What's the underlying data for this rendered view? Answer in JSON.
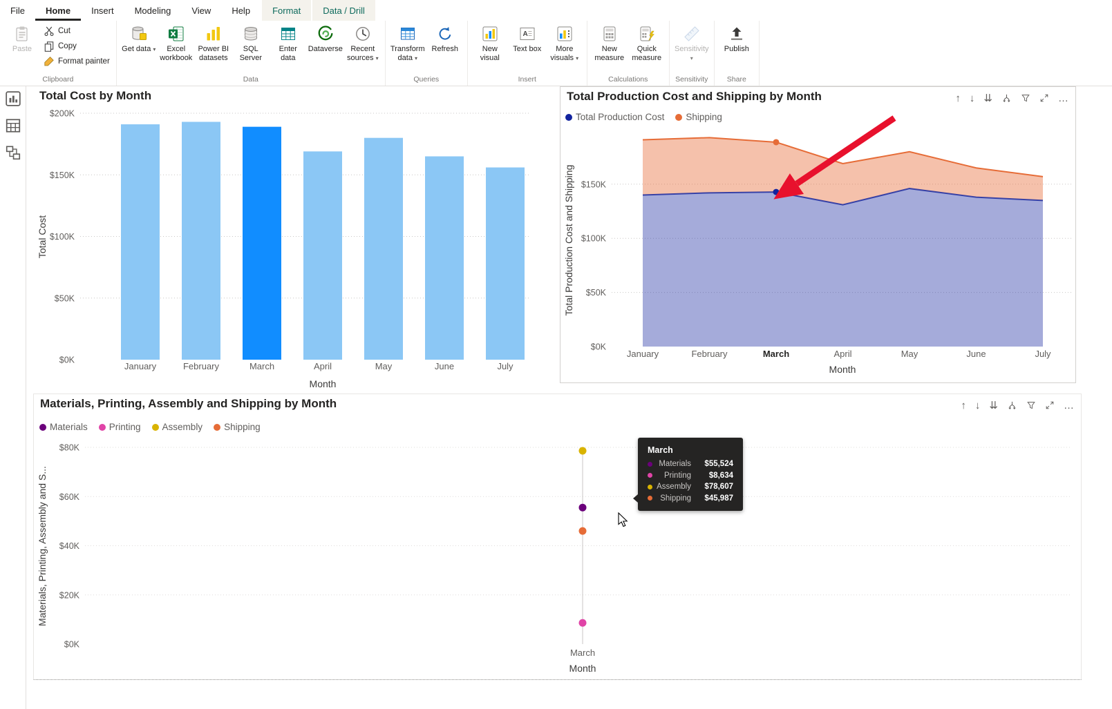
{
  "menu": {
    "tabs": [
      {
        "label": "File",
        "active": false
      },
      {
        "label": "Home",
        "active": true
      },
      {
        "label": "Insert",
        "active": false
      },
      {
        "label": "Modeling",
        "active": false
      },
      {
        "label": "View",
        "active": false
      },
      {
        "label": "Help",
        "active": false
      }
    ],
    "contextual_tabs": [
      {
        "label": "Format"
      },
      {
        "label": "Data / Drill"
      }
    ]
  },
  "ribbon": {
    "groups": [
      {
        "label": "Clipboard",
        "items": [
          {
            "label": "Paste",
            "icon": "paste-icon",
            "disabled": true
          },
          {
            "label": "Cut",
            "icon": "cut-icon"
          },
          {
            "label": "Copy",
            "icon": "copy-icon"
          },
          {
            "label": "Format painter",
            "icon": "format-painter-icon"
          }
        ]
      },
      {
        "label": "Data",
        "items": [
          {
            "label": "Get data",
            "icon": "get-data-icon",
            "dropdown": true
          },
          {
            "label": "Excel workbook",
            "icon": "excel-workbook-icon"
          },
          {
            "label": "Power BI datasets",
            "icon": "power-bi-datasets-icon"
          },
          {
            "label": "SQL Server",
            "icon": "sql-server-icon"
          },
          {
            "label": "Enter data",
            "icon": "enter-data-icon"
          },
          {
            "label": "Dataverse",
            "icon": "dataverse-icon"
          },
          {
            "label": "Recent sources",
            "icon": "recent-sources-icon",
            "dropdown": true
          }
        ]
      },
      {
        "label": "Queries",
        "items": [
          {
            "label": "Transform data",
            "icon": "transform-data-icon",
            "dropdown": true
          },
          {
            "label": "Refresh",
            "icon": "refresh-icon"
          }
        ]
      },
      {
        "label": "Insert",
        "items": [
          {
            "label": "New visual",
            "icon": "new-visual-icon"
          },
          {
            "label": "Text box",
            "icon": "text-box-icon"
          },
          {
            "label": "More visuals",
            "icon": "more-visuals-icon",
            "dropdown": true
          }
        ]
      },
      {
        "label": "Calculations",
        "items": [
          {
            "label": "New measure",
            "icon": "new-measure-icon"
          },
          {
            "label": "Quick measure",
            "icon": "quick-measure-icon"
          }
        ]
      },
      {
        "label": "Sensitivity",
        "items": [
          {
            "label": "Sensitivity",
            "icon": "sensitivity-icon",
            "disabled": true,
            "dropdown": true
          }
        ]
      },
      {
        "label": "Share",
        "items": [
          {
            "label": "Publish",
            "icon": "publish-icon"
          }
        ]
      }
    ]
  },
  "sidebar": {
    "items": [
      {
        "name": "report-view",
        "icon": "report-view-icon",
        "active": true
      },
      {
        "name": "data-view",
        "icon": "data-view-icon",
        "active": false
      },
      {
        "name": "model-view",
        "icon": "model-view-icon",
        "active": false
      }
    ]
  },
  "visual_toolbar": {
    "icons": [
      "drill-up-icon",
      "drill-down-icon",
      "drill-next-level-icon",
      "expand-all-down-icon",
      "filters-icon",
      "focus-mode-icon",
      "more-options-icon"
    ]
  },
  "tooltip": {
    "title": "March",
    "rows": [
      {
        "label": "Materials",
        "value": "$55,524",
        "color": "#6B007B"
      },
      {
        "label": "Printing",
        "value": "$8,634",
        "color": "#E044A7"
      },
      {
        "label": "Assembly",
        "value": "$78,607",
        "color": "#D9B300"
      },
      {
        "label": "Shipping",
        "value": "$45,987",
        "color": "#E66C37"
      }
    ]
  },
  "chart_data": [
    {
      "type": "bar",
      "title": "Total Cost by Month",
      "xlabel": "Month",
      "ylabel": "Total Cost",
      "categories": [
        "January",
        "February",
        "March",
        "April",
        "May",
        "June",
        "July"
      ],
      "values": [
        191,
        193,
        189,
        169,
        180,
        165,
        156
      ],
      "value_unit": "thousand USD",
      "ylim": [
        0,
        200
      ],
      "yticks": [
        "$0K",
        "$50K",
        "$100K",
        "$150K",
        "$200K"
      ],
      "highlight_category": "March",
      "bar_color": "#8BC7F5",
      "highlight_color": "#118DFF",
      "grid": true,
      "legend_position": "none"
    },
    {
      "type": "area",
      "stacked": true,
      "title": "Total Production Cost and Shipping by Month",
      "xlabel": "Month",
      "ylabel": "Total Production Cost and Shipping",
      "categories": [
        "January",
        "February",
        "March",
        "April",
        "May",
        "June",
        "July"
      ],
      "series": [
        {
          "name": "Total Production Cost",
          "color": "#12239E",
          "values": [
            140,
            142,
            142.8,
            131,
            146,
            138,
            135
          ]
        },
        {
          "name": "Shipping",
          "color": "#E66C37",
          "values": [
            51,
            51,
            46,
            38,
            34,
            27,
            22
          ]
        }
      ],
      "value_unit": "thousand USD",
      "ylim": [
        0,
        200
      ],
      "yticks": [
        "$0K",
        "$50K",
        "$100K",
        "$150K"
      ],
      "highlight_category": "March",
      "marked_points": [
        {
          "category": "March",
          "series": "Total Production Cost"
        },
        {
          "category": "March",
          "series": "Shipping"
        }
      ],
      "annotation": "large red arrow pointing at the March Total Production Cost data point",
      "grid": true,
      "legend_position": "top"
    },
    {
      "type": "scatter",
      "title": "Materials, Printing, Assembly and Shipping by Month",
      "xlabel": "Month",
      "ylabel": "Materials, Printing, Assembly and S...",
      "categories": [
        "March"
      ],
      "series": [
        {
          "name": "Materials",
          "color": "#6B007B",
          "values": [
            55.524
          ]
        },
        {
          "name": "Printing",
          "color": "#E044A7",
          "values": [
            8.634
          ]
        },
        {
          "name": "Assembly",
          "color": "#D9B300",
          "values": [
            78.607
          ]
        },
        {
          "name": "Shipping",
          "color": "#E66C37",
          "values": [
            45.987
          ]
        }
      ],
      "value_unit": "thousand USD",
      "ylim": [
        0,
        80
      ],
      "yticks": [
        "$0K",
        "$20K",
        "$40K",
        "$60K",
        "$80K"
      ],
      "grid": true,
      "legend_position": "top"
    }
  ]
}
